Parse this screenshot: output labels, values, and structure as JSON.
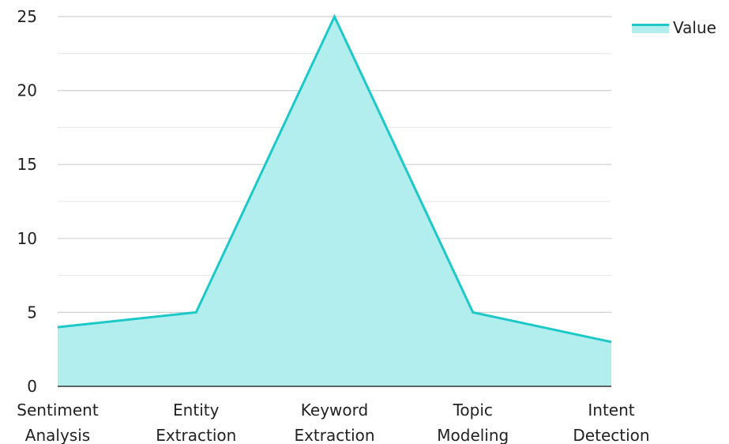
{
  "chart_data": {
    "type": "area",
    "categories": [
      [
        "Sentiment",
        "Analysis"
      ],
      [
        "Entity",
        "Extraction"
      ],
      [
        "Keyword",
        "Extraction"
      ],
      [
        "Topic",
        "Modeling"
      ],
      [
        "Intent",
        "Detection"
      ]
    ],
    "series": [
      {
        "name": "Value",
        "values": [
          4,
          5,
          25,
          5,
          3
        ]
      }
    ],
    "ylim": [
      0,
      25
    ],
    "y_ticks": [
      "0",
      "5",
      "10",
      "15",
      "20",
      "25"
    ],
    "grid": true,
    "legend": "top-right",
    "colors": {
      "line": "#1cc8c8",
      "fill": "#b2eeee",
      "grid": "#d0d0d0",
      "axis": "#333333"
    }
  }
}
